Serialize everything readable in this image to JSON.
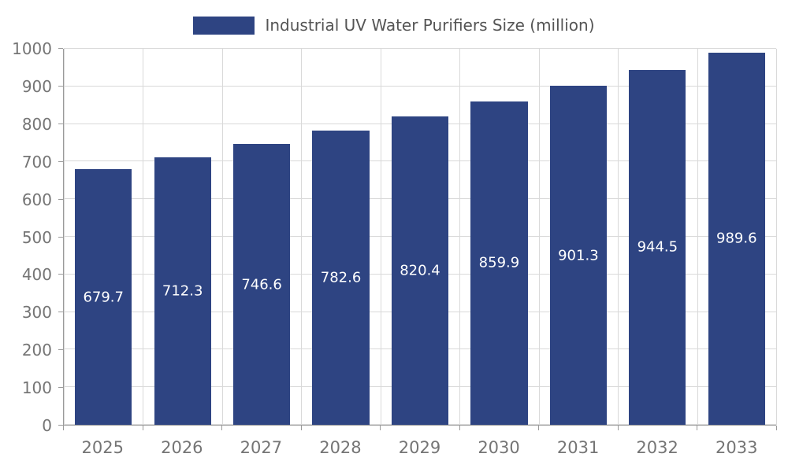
{
  "legend": {
    "label": "Industrial UV Water Purifiers Size (million)",
    "swatch_color": "#2E4482"
  },
  "chart_data": {
    "type": "bar",
    "title": "Industrial UV Water Purifiers Size (million)",
    "categories": [
      "2025",
      "2026",
      "2027",
      "2028",
      "2029",
      "2030",
      "2031",
      "2032",
      "2033"
    ],
    "values": [
      679.7,
      712.3,
      746.6,
      782.6,
      820.4,
      859.9,
      901.3,
      944.5,
      989.6
    ],
    "xlabel": "",
    "ylabel": "",
    "ylim": [
      0,
      1000
    ],
    "ytick_step": 100,
    "ytick_labels": [
      "0",
      "100",
      "200",
      "300",
      "400",
      "500",
      "600",
      "700",
      "800",
      "900",
      "1000"
    ],
    "grid": true,
    "legend_position": "top",
    "bar_color": "#2E4482",
    "value_label_color": "#ffffff",
    "axis_line_color": "#9a9a9a",
    "gridline_color": "#d9d9d9",
    "tick_label_color": "#757575"
  }
}
